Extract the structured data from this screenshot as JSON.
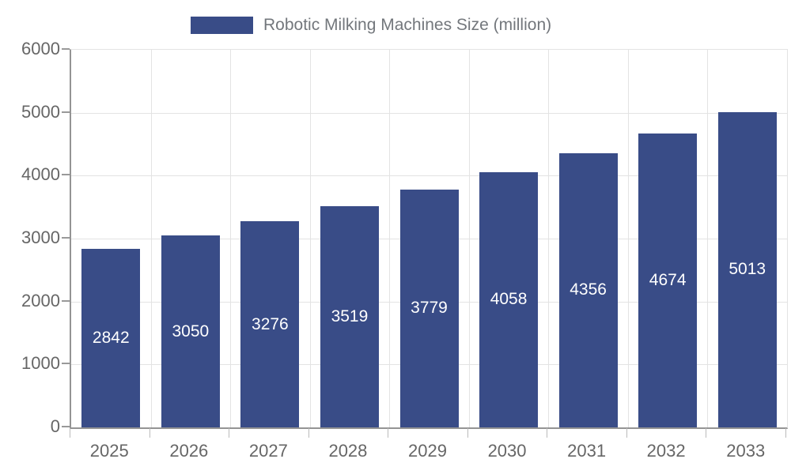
{
  "legend": {
    "label": "Robotic Milking Machines Size (million)"
  },
  "chart_data": {
    "type": "bar",
    "title": "",
    "legend_entries": [
      "Robotic Milking Machines Size (million)"
    ],
    "legend_position": "top",
    "categories": [
      "2025",
      "2026",
      "2027",
      "2028",
      "2029",
      "2030",
      "2031",
      "2032",
      "2033"
    ],
    "values": [
      2842,
      3050,
      3276,
      3519,
      3779,
      4058,
      4356,
      4674,
      5013
    ],
    "xlabel": "",
    "ylabel": "",
    "ylim": [
      0,
      6000
    ],
    "ytick_step": 1000,
    "grid": true,
    "bar_color": "#394C87",
    "bar_label_color": "#ffffff",
    "axis_text_color": "#666666",
    "axis_line_color": "#949494",
    "gridline_color": "#e3e3e3"
  }
}
